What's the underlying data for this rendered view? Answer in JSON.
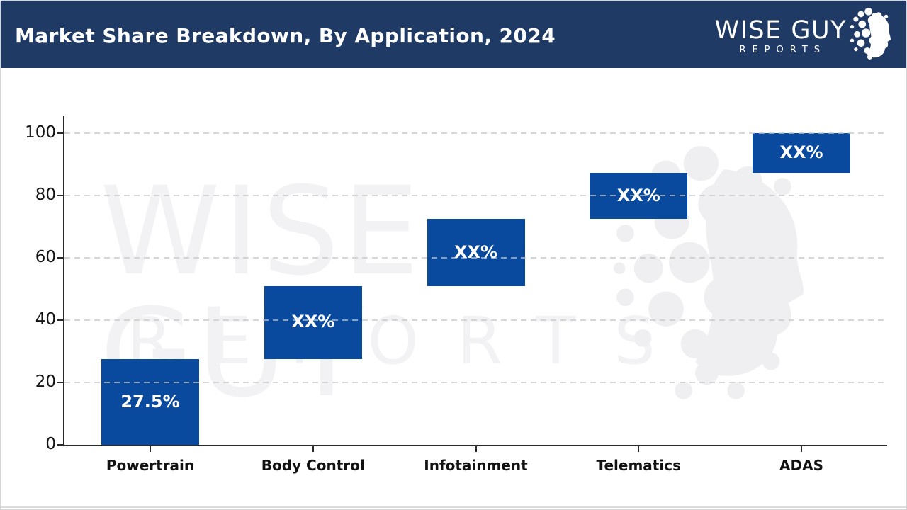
{
  "header": {
    "title": "Market Share Breakdown, By Application, 2024",
    "logo": {
      "line1": "WISE GUY",
      "line2": "REPORTS"
    }
  },
  "watermark": {
    "line1": "WISE GUY",
    "line2": "REPORTS"
  },
  "colors": {
    "header_bg": "#1f3a64",
    "bar": "#0a4a9e",
    "bar_label": "#ffffff",
    "axis": "#2a2a2a",
    "gridline": "#c6c6c6",
    "watermark": "#f2f2f4"
  },
  "chart_data": {
    "type": "bar",
    "subtype": "waterfall",
    "title": "Market Share Breakdown, By Application, 2024",
    "categories": [
      "Powertrain",
      "Body Control",
      "Infotainment",
      "Telematics",
      "ADAS"
    ],
    "segments": [
      {
        "category": "Powertrain",
        "start": 0,
        "end": 27.5,
        "label": "27.5%"
      },
      {
        "category": "Body Control",
        "start": 27.5,
        "end": 51,
        "label": "XX%"
      },
      {
        "category": "Infotainment",
        "start": 51,
        "end": 72.4,
        "label": "XX%"
      },
      {
        "category": "Telematics",
        "start": 72.4,
        "end": 87.3,
        "label": "XX%"
      },
      {
        "category": "ADAS",
        "start": 87.3,
        "end": 100,
        "label": "XX%"
      }
    ],
    "xlabel": "",
    "ylabel": "",
    "ylim": [
      0,
      100
    ],
    "yticks": [
      0,
      20,
      40,
      60,
      80,
      100
    ],
    "grid": "horizontal-dashed",
    "legend": "none",
    "bar_color": "#0a4a9e"
  }
}
